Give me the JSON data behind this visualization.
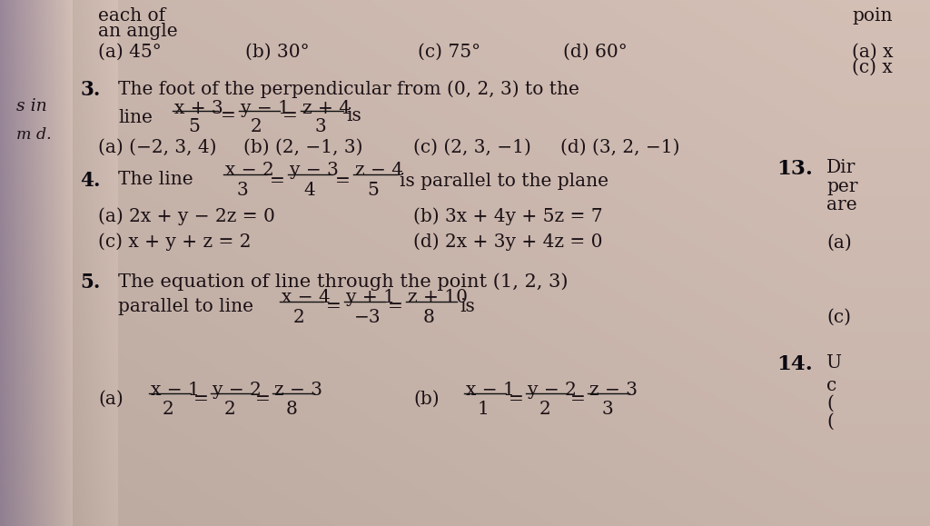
{
  "bg_color": "#d4bfb0",
  "shadow_color": "#a08898",
  "text_color": "#1a1015",
  "bold_color": "#0a0810",
  "fs": 14.5,
  "fs_bold": 15.5,
  "items": {
    "top_left_1": "each of ",
    "top_left_2": "an angle",
    "a45": "(a) 45°",
    "b30": "(b) 30°",
    "c75": "(c) 75°",
    "d60": "(d) 60°",
    "poin": "poin",
    "a_x": "(a) x",
    "c_x": "(c) x",
    "q3_num": "3.",
    "q3_text": "The foot of the perpendicular from (0, 2, 3) to the",
    "q3_line": "line",
    "q3_is": "is",
    "q3_a": "(a) (−2, 3, 4)",
    "q3_b": "(b) (2, −1, 3)",
    "q3_c": "(c) (2, 3, −1)",
    "q3_d": "(d) (3, 2, −1)",
    "q13_num": "13.",
    "q13_dir": "Dir",
    "q13_per": "per",
    "q13_are": "are",
    "q13_a": "(a)",
    "q13_c": "(c)",
    "q4_num": "4.",
    "q4_text": "The line",
    "q4_rest": "is parallel to the plane",
    "q4_a": "(a) 2x + y − 2z = 0",
    "q4_b": "(b) 3x + 4y + 5z = 7",
    "q4_c": "(c) x + y + z = 2",
    "q4_d": "(d) 2x + 3y + 4z = 0",
    "q5_num": "5.",
    "q5_text": "The equation of line through the point (1, 2, 3)",
    "q5_parallel": "parallel to line",
    "q5_is": "is",
    "q14_num": "14.",
    "q14_u": "U",
    "q14_c1": "c",
    "q14_c2": "(",
    "q14_c3": "(",
    "q5_a_label": "(a)",
    "q5_b_label": "(b)"
  }
}
